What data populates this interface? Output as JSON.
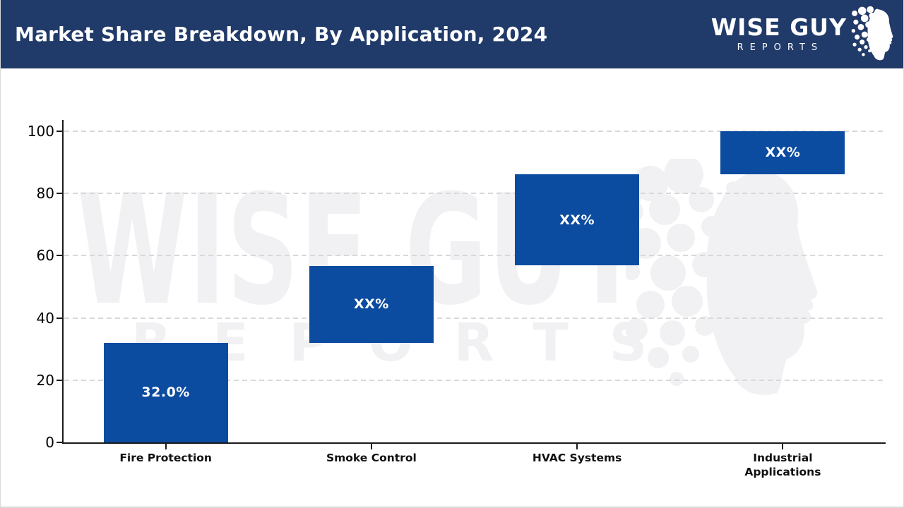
{
  "header": {
    "title": "Market Share Breakdown, By Application, 2024",
    "bg_color": "#203A69",
    "logo": {
      "line1": "WISE GUY",
      "line2": "REPORTS"
    }
  },
  "watermark": {
    "line1": "WISE GUY",
    "line2": "REPORTS"
  },
  "chart_data": {
    "type": "bar",
    "subtype": "waterfall",
    "title": "Market Share Breakdown, By Application, 2024",
    "categories": [
      "Fire Protection",
      "Smoke Control",
      "HVAC Systems",
      "Industrial Applications"
    ],
    "segments": [
      {
        "category": "Fire Protection",
        "start": 0,
        "end": 32,
        "label": "32.0%"
      },
      {
        "category": "Smoke Control",
        "start": 32,
        "end": 56.8,
        "label": "XX%"
      },
      {
        "category": "HVAC Systems",
        "start": 56.8,
        "end": 86.2,
        "label": "XX%"
      },
      {
        "category": "Industrial Applications",
        "start": 86.2,
        "end": 100,
        "label": "XX%"
      }
    ],
    "series": [
      {
        "name": "Market Share",
        "values": [
          32.0,
          24.8,
          29.4,
          13.8
        ]
      }
    ],
    "bar_labels": [
      "32.0%",
      "XX%",
      "XX%",
      "XX%"
    ],
    "xlabel": "",
    "ylabel": "",
    "ylim": [
      0,
      100
    ],
    "yticks": [
      0,
      20,
      40,
      60,
      80,
      100
    ],
    "grid": "horizontal-dashed",
    "legend": false,
    "bar_color": "#0B4BA0",
    "bar_label_color": "#FFFFFF",
    "axis_color": "#1a1a1a",
    "grid_color": "#d8d8d8",
    "watermark_color": "#f1f1f4"
  }
}
